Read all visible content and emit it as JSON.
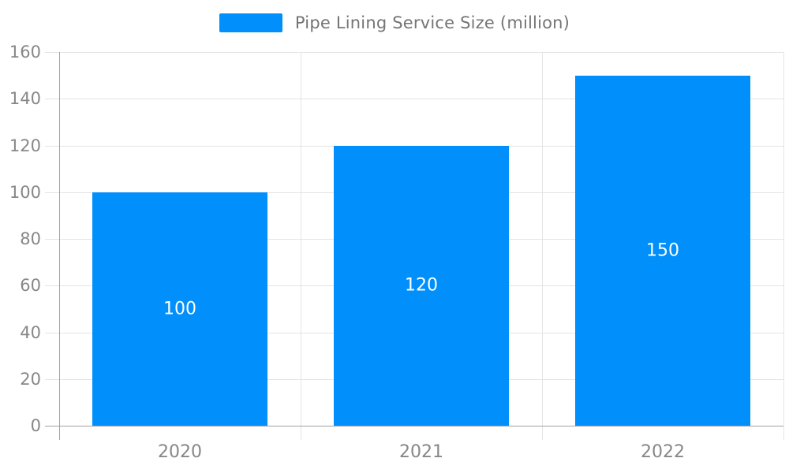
{
  "chart_data": {
    "type": "bar",
    "title": "",
    "legend": {
      "label": "Pipe Lining Service Size (million)",
      "position": "top"
    },
    "categories": [
      "2020",
      "2021",
      "2022"
    ],
    "series": [
      {
        "name": "Pipe Lining Service Size (million)",
        "values": [
          100,
          120,
          150
        ]
      }
    ],
    "data_labels": [
      "100",
      "120",
      "150"
    ],
    "yticks": [
      0,
      20,
      40,
      60,
      80,
      100,
      120,
      140,
      160
    ],
    "ylim": [
      0,
      160
    ],
    "xlabel": "",
    "ylabel": "",
    "grid": true,
    "legend_marker": "wide-rectangle",
    "colors": {
      "bar": "#008FFB",
      "legend_text": "#757575",
      "axis_label": "#878787",
      "gridline": "#e4e4e4",
      "axis_line": "#a3a3a3",
      "data_label": "#ffffff",
      "background": "#ffffff"
    }
  }
}
